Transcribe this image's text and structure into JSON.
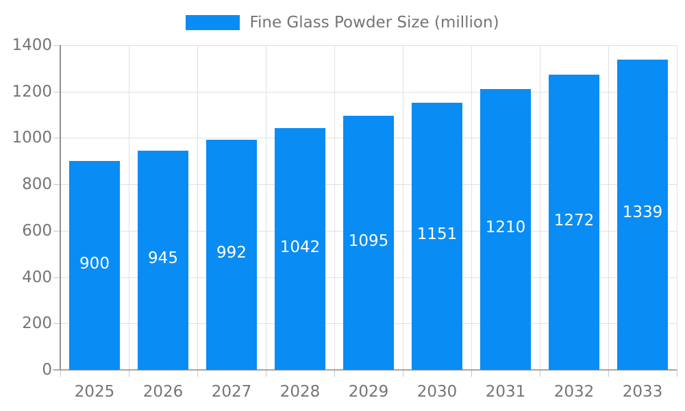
{
  "chart_data": {
    "type": "bar",
    "title": "Fine Glass Powder Size (million)",
    "series": [
      {
        "name": "Fine Glass Powder Size (million)",
        "values": [
          900,
          945,
          992,
          1042,
          1095,
          1151,
          1210,
          1272,
          1339
        ]
      }
    ],
    "categories": [
      "2025",
      "2026",
      "2027",
      "2028",
      "2029",
      "2030",
      "2031",
      "2032",
      "2033"
    ],
    "values": [
      900,
      945,
      992,
      1042,
      1095,
      1151,
      1210,
      1272,
      1339
    ],
    "xlabel": "",
    "ylabel": "",
    "ylim": [
      0,
      1400
    ],
    "ytick_step": 200,
    "yticks": [
      0,
      200,
      400,
      600,
      800,
      1000,
      1200,
      1400
    ],
    "grid": true,
    "legend_position": "top",
    "value_labels": "inside-center",
    "colors": {
      "bar": "#0A8CF5",
      "text": "#757575",
      "value_label": "#FFFFFF",
      "gridline": "#E0E0E0",
      "tick": "#C6C6C6",
      "axis_y": "#8F8F8F",
      "axis_x": "#A6A6A6",
      "background": "#FFFFFF"
    }
  }
}
